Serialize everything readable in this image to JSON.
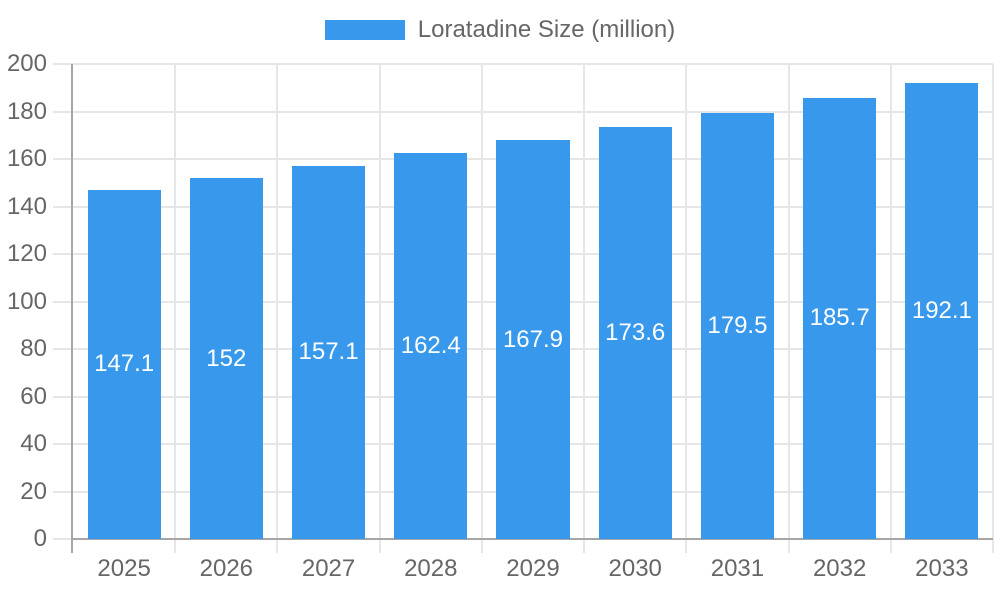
{
  "legend": {
    "label": "Loratadine Size (million)"
  },
  "colors": {
    "bar": "#3899ec",
    "grid": "#e6e6e6",
    "axis": "#a6a6a6",
    "text": "#666666",
    "value_label": "#ffffff",
    "background": "#ffffff"
  },
  "chart_data": {
    "type": "bar",
    "title": "",
    "legend": [
      "Loratadine Size (million)"
    ],
    "legend_position": "top-center",
    "categories": [
      "2025",
      "2026",
      "2027",
      "2028",
      "2029",
      "2030",
      "2031",
      "2032",
      "2033"
    ],
    "series": [
      {
        "name": "Loratadine Size (million)",
        "values": [
          147.1,
          152,
          157.1,
          162.4,
          167.9,
          173.6,
          179.5,
          185.7,
          192.1
        ]
      }
    ],
    "value_labels": [
      "147.1",
      "152",
      "157.1",
      "162.4",
      "167.9",
      "173.6",
      "179.5",
      "185.7",
      "192.1"
    ],
    "value_label_position": "inside-middle",
    "xlabel": "",
    "ylabel": "",
    "ylim": [
      0,
      200
    ],
    "ytick_step": 20,
    "yticks": [
      "0",
      "20",
      "40",
      "60",
      "80",
      "100",
      "120",
      "140",
      "160",
      "180",
      "200"
    ],
    "grid": true
  }
}
